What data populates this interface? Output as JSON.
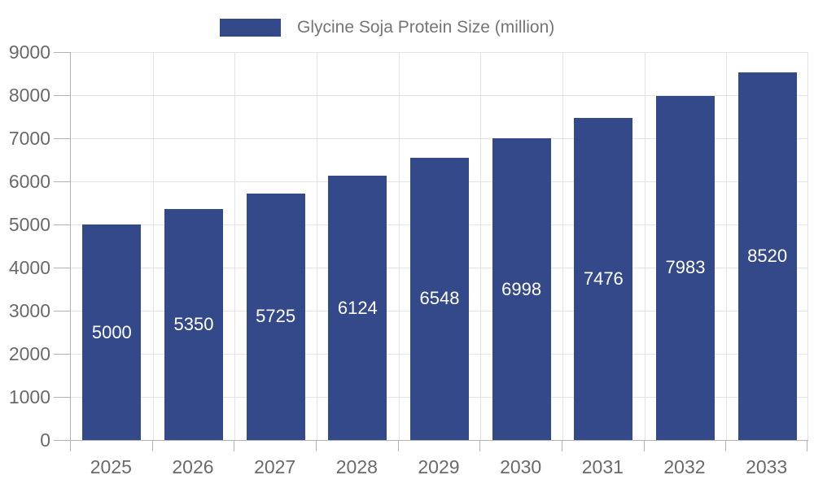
{
  "legend": {
    "label": "Glycine Soja Protein Size (million)"
  },
  "colors": {
    "bar": "#34498A",
    "bar_label": "#FFFFFF",
    "grid": "#E4E4E4",
    "axis": "#B2B2B2",
    "axis_text": "#6A6A6A",
    "legend_text": "#757575",
    "background": "#FFFFFF"
  },
  "chart_data": {
    "type": "bar",
    "title": "Glycine Soja Protein Size (million)",
    "series_name": "Glycine Soja Protein Size (million)",
    "categories": [
      "2025",
      "2026",
      "2027",
      "2028",
      "2029",
      "2030",
      "2031",
      "2032",
      "2033"
    ],
    "values": [
      5000,
      5350,
      5725,
      6124,
      6548,
      6998,
      7476,
      7983,
      8520
    ],
    "xlabel": "",
    "ylabel": "",
    "ylim": [
      0,
      9000
    ],
    "ytick_step": 1000,
    "yticks": [
      0,
      1000,
      2000,
      3000,
      4000,
      5000,
      6000,
      7000,
      8000,
      9000
    ],
    "grid": true,
    "legend_position": "top-center",
    "bar_label_position": "inside-center"
  }
}
